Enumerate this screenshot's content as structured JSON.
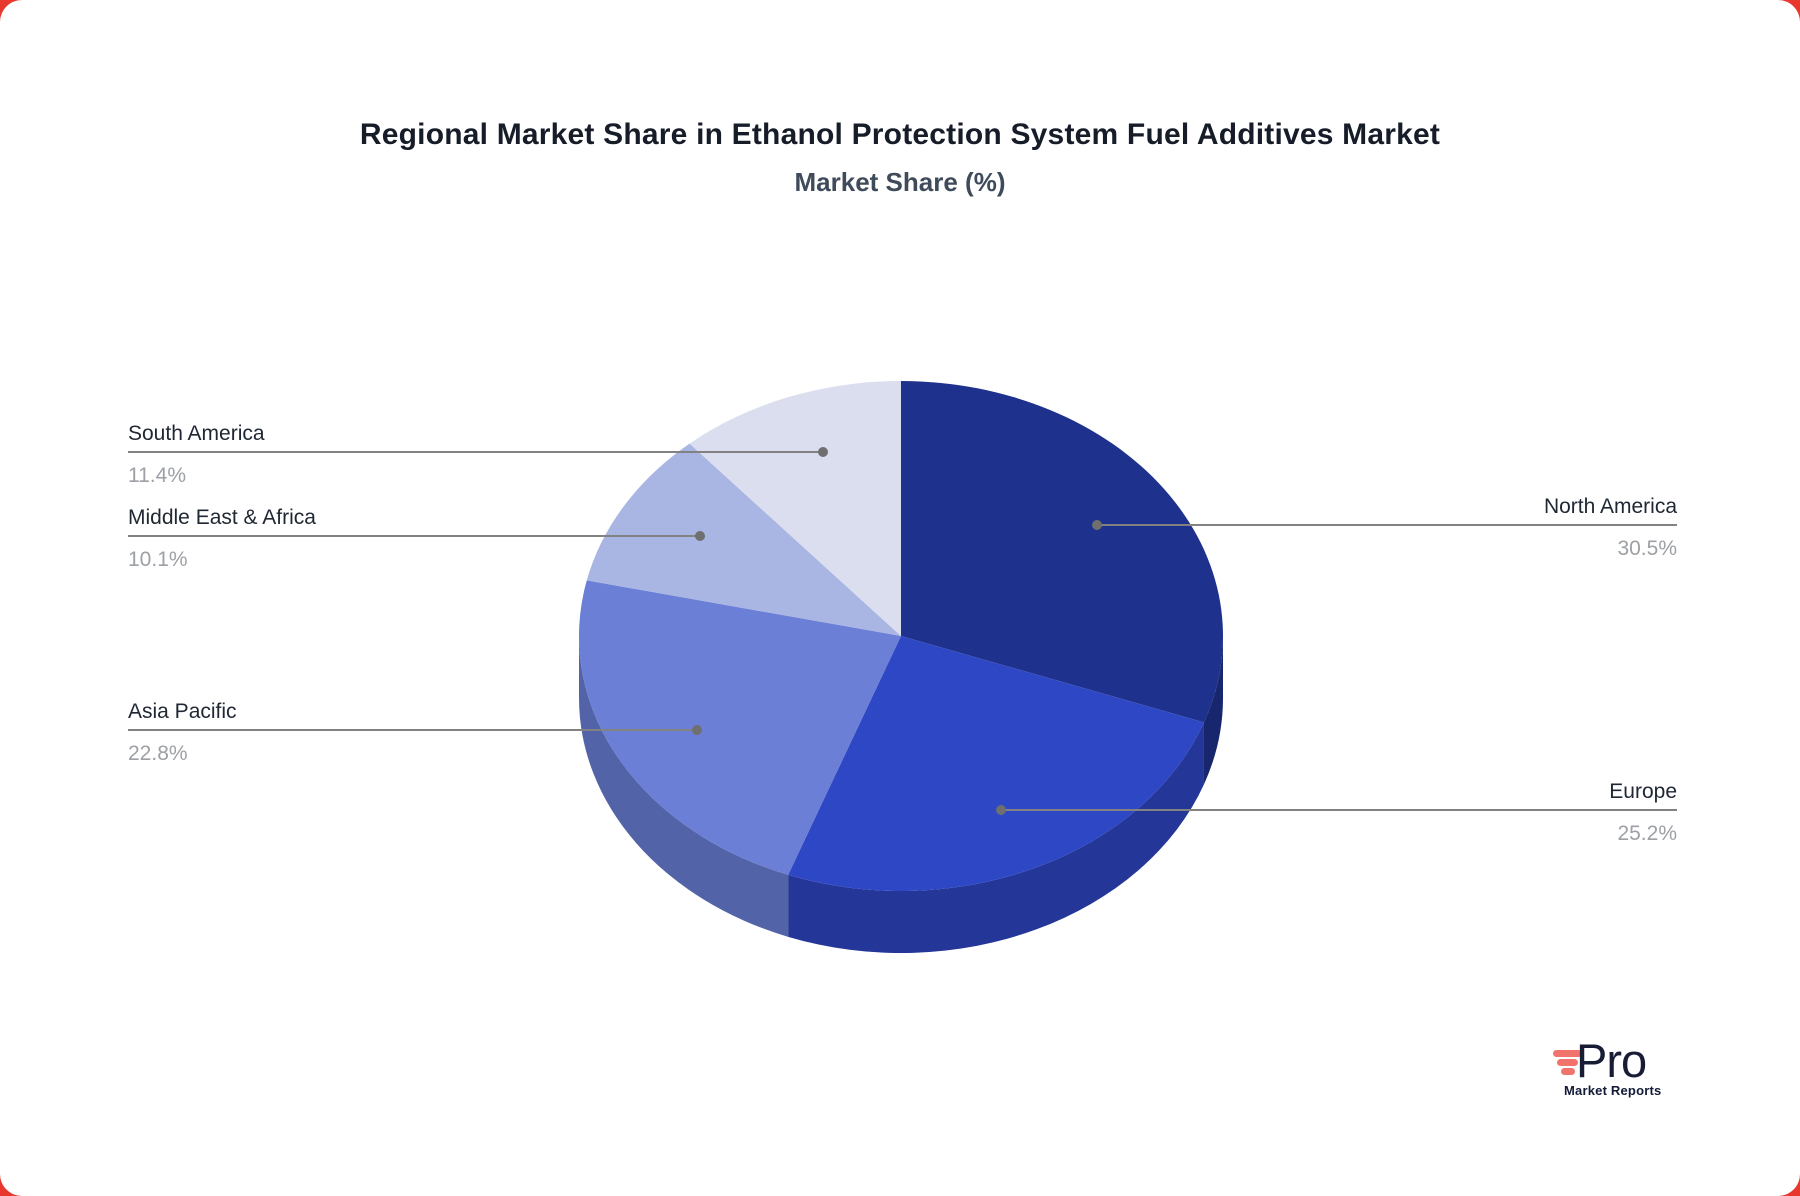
{
  "chart_data": {
    "type": "pie",
    "style": "3d",
    "title": "Regional Market Share in Ethanol Protection System Fuel Additives Market",
    "subtitle": "Market Share (%)",
    "unit": "%",
    "direction": "clockwise",
    "start_angle_deg": 0,
    "legend_position": "none",
    "labels": [
      "North America",
      "Europe",
      "Asia Pacific",
      "Middle East & Africa",
      "South America"
    ],
    "values": [
      30.5,
      25.2,
      22.8,
      10.1,
      11.4
    ],
    "display_values": [
      "30.5%",
      "25.2%",
      "22.8%",
      "10.1%",
      "11.4%"
    ],
    "colors": [
      "#1E318C",
      "#2E47C4",
      "#6B7FD6",
      "#A9B5E2",
      "#DBDEEF"
    ]
  },
  "logo": {
    "brand": "Pro",
    "tagline": "Market Reports",
    "bar_color": "#F0746C",
    "text_color": "#181C35"
  },
  "colors": {
    "background": "#FFFFFF",
    "page_behind_corners": "#E8372C",
    "label_text": "#1F2733",
    "value_text": "#9DA0A5",
    "leader_line": "#828282",
    "leader_dot": "#6F6F6F",
    "title": "#161C28",
    "subtitle": "#3F4B5B"
  }
}
